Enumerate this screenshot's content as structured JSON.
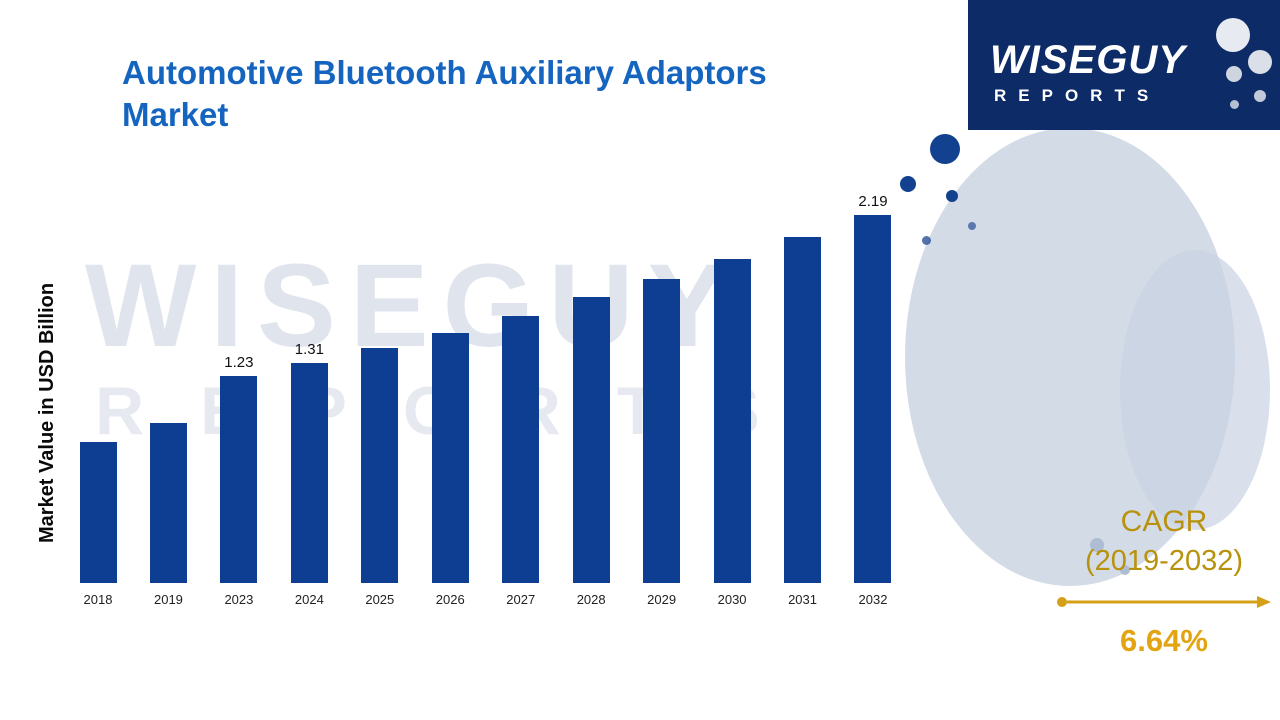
{
  "title": "Automotive Bluetooth Auxiliary Adaptors Market",
  "logo": {
    "line1": "WISEGUY",
    "line2": "REPORTS"
  },
  "watermark": {
    "line1": "WISEGUY",
    "line2": "REPORTS"
  },
  "cagr": {
    "label": "CAGR",
    "range": "(2019-2032)",
    "value": "6.64%"
  },
  "chart_data": {
    "type": "bar",
    "title": "Automotive Bluetooth Auxiliary Adaptors Market",
    "xlabel": "",
    "ylabel": "Market Value in USD Billion",
    "categories": [
      "2018",
      "2019",
      "2023",
      "2024",
      "2025",
      "2026",
      "2027",
      "2028",
      "2029",
      "2030",
      "2031",
      "2032"
    ],
    "values": [
      0.84,
      0.95,
      1.23,
      1.31,
      1.4,
      1.49,
      1.59,
      1.7,
      1.81,
      1.93,
      2.06,
      2.19
    ],
    "bar_labels": [
      "",
      "",
      "1.23",
      "1.31",
      "",
      "",
      "",
      "",
      "",
      "",
      "",
      "2.19"
    ],
    "ylim": [
      0,
      2.4
    ],
    "grid": false,
    "legend": null,
    "bar_color": "#0e3e92"
  },
  "colors": {
    "title_blue": "#1565c0",
    "bar_navy": "#0e3e92",
    "logo_navy": "#0d2b66",
    "gold": "#d4a017",
    "gold_dark": "#b8920c",
    "gold_bright": "#e2a411",
    "blob_gray": "#c9d3e2"
  }
}
